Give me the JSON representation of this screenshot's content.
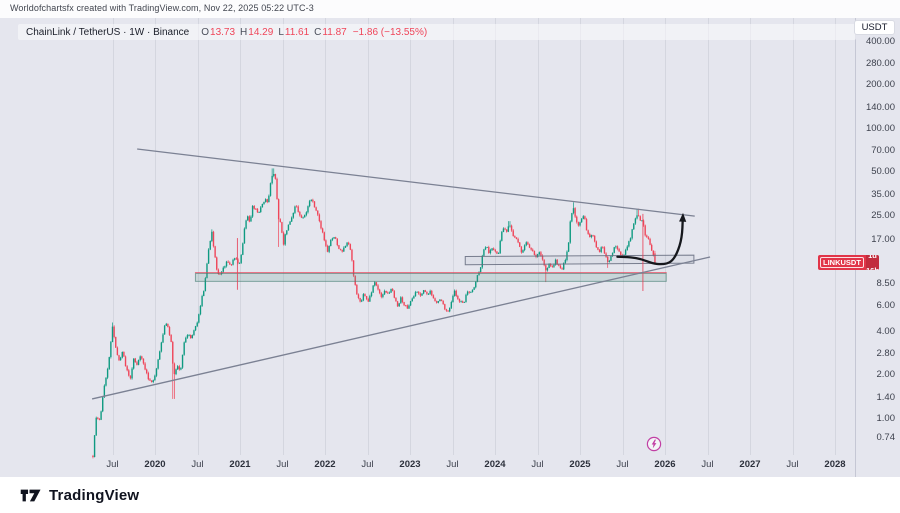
{
  "attribution": "Worldofchartsfx created with TradingView.com, Nov 22, 2025 05:22 UTC-3",
  "toolbar": {
    "currency_label": "USDT"
  },
  "legend": {
    "title": "ChainLink / TetherUS · 1W · Binance",
    "ohlc": [
      [
        "O",
        "13.73"
      ],
      [
        "H",
        "14.29"
      ],
      [
        "L",
        "11.61"
      ],
      [
        "C",
        "11.87"
      ]
    ],
    "change": "−1.86 (−13.55%)"
  },
  "price_tag": {
    "symbol": "LINKUSDT",
    "countdown": "1d 16h"
  },
  "footer": {
    "brand": "TradingView"
  },
  "chart_data": {
    "type": "candlestick",
    "title": "ChainLink / TetherUS weekly on Binance",
    "scale": "log",
    "grid": "vertical",
    "y_axis": {
      "ticks": [
        "400.00",
        "280.00",
        "200.00",
        "140.00",
        "100.00",
        "70.00",
        "50.00",
        "35.00",
        "25.00",
        "17.00",
        "8.50",
        "6.00",
        "4.00",
        "2.80",
        "2.00",
        "1.40",
        "1.00",
        "0.74"
      ]
    },
    "x_axis": {
      "ticks": [
        {
          "label": "Jul",
          "t": 2019.5
        },
        {
          "label": "2020",
          "t": 2020,
          "year": true
        },
        {
          "label": "Jul",
          "t": 2020.5
        },
        {
          "label": "2021",
          "t": 2021,
          "year": true
        },
        {
          "label": "Jul",
          "t": 2021.5
        },
        {
          "label": "2022",
          "t": 2022,
          "year": true
        },
        {
          "label": "Jul",
          "t": 2022.5
        },
        {
          "label": "2023",
          "t": 2023,
          "year": true
        },
        {
          "label": "Jul",
          "t": 2023.5
        },
        {
          "label": "2024",
          "t": 2024,
          "year": true
        },
        {
          "label": "Jul",
          "t": 2024.5
        },
        {
          "label": "2025",
          "t": 2025,
          "year": true
        },
        {
          "label": "Jul",
          "t": 2025.5
        },
        {
          "label": "2026",
          "t": 2026,
          "year": true
        },
        {
          "label": "Jul",
          "t": 2026.5
        },
        {
          "label": "2027",
          "t": 2027,
          "year": true
        },
        {
          "label": "Jul",
          "t": 2027.5
        },
        {
          "label": "2028",
          "t": 2028,
          "year": true
        }
      ]
    },
    "last_candle": {
      "open": 13.73,
      "high": 14.29,
      "low": 11.61,
      "close": 11.87
    },
    "current_price": 11.87,
    "weekly_close_anchors": [
      [
        2019.27,
        0.55
      ],
      [
        2019.31,
        1.05
      ],
      [
        2019.35,
        0.95
      ],
      [
        2019.4,
        1.6
      ],
      [
        2019.45,
        2.3
      ],
      [
        2019.5,
        4.3
      ],
      [
        2019.54,
        3.0
      ],
      [
        2019.58,
        2.45
      ],
      [
        2019.62,
        2.9
      ],
      [
        2019.66,
        2.2
      ],
      [
        2019.71,
        1.85
      ],
      [
        2019.75,
        2.6
      ],
      [
        2019.79,
        2.3
      ],
      [
        2019.83,
        2.75
      ],
      [
        2019.88,
        2.2
      ],
      [
        2019.92,
        1.9
      ],
      [
        2019.96,
        1.75
      ],
      [
        2020.0,
        2.0
      ],
      [
        2020.04,
        2.6
      ],
      [
        2020.08,
        3.4
      ],
      [
        2020.12,
        4.6
      ],
      [
        2020.16,
        4.1
      ],
      [
        2020.19,
        3.3
      ],
      [
        2020.22,
        2.0
      ],
      [
        2020.26,
        2.3
      ],
      [
        2020.3,
        2.15
      ],
      [
        2020.34,
        3.3
      ],
      [
        2020.38,
        3.8
      ],
      [
        2020.42,
        3.6
      ],
      [
        2020.46,
        4.0
      ],
      [
        2020.5,
        4.6
      ],
      [
        2020.54,
        6.3
      ],
      [
        2020.58,
        8.0
      ],
      [
        2020.62,
        13.0
      ],
      [
        2020.645,
        16.5
      ],
      [
        2020.67,
        19.2
      ],
      [
        2020.7,
        13.5
      ],
      [
        2020.73,
        10.3
      ],
      [
        2020.77,
        9.6
      ],
      [
        2020.81,
        11.0
      ],
      [
        2020.85,
        12.2
      ],
      [
        2020.89,
        11.3
      ],
      [
        2020.93,
        13.0
      ],
      [
        2020.97,
        12.0
      ],
      [
        2021.0,
        11.6
      ],
      [
        2021.03,
        15.6
      ],
      [
        2021.06,
        22.0
      ],
      [
        2021.09,
        24.5
      ],
      [
        2021.12,
        22.5
      ],
      [
        2021.15,
        29.5
      ],
      [
        2021.18,
        27.5
      ],
      [
        2021.22,
        26.5
      ],
      [
        2021.26,
        29.5
      ],
      [
        2021.3,
        32.5
      ],
      [
        2021.33,
        30.0
      ],
      [
        2021.36,
        43.0
      ],
      [
        2021.39,
        49.5
      ],
      [
        2021.42,
        43.5
      ],
      [
        2021.45,
        24.0
      ],
      [
        2021.48,
        22.5
      ],
      [
        2021.51,
        15.8
      ],
      [
        2021.54,
        19.3
      ],
      [
        2021.58,
        22.0
      ],
      [
        2021.62,
        25.5
      ],
      [
        2021.66,
        30.0
      ],
      [
        2021.69,
        26.0
      ],
      [
        2021.73,
        24.0
      ],
      [
        2021.77,
        25.5
      ],
      [
        2021.81,
        30.5
      ],
      [
        2021.85,
        32.5
      ],
      [
        2021.88,
        28.0
      ],
      [
        2021.92,
        24.5
      ],
      [
        2021.96,
        20.0
      ],
      [
        2022.0,
        16.5
      ],
      [
        2022.03,
        14.0
      ],
      [
        2022.07,
        17.0
      ],
      [
        2022.11,
        18.0
      ],
      [
        2022.15,
        15.5
      ],
      [
        2022.19,
        14.0
      ],
      [
        2022.23,
        15.0
      ],
      [
        2022.27,
        16.5
      ],
      [
        2022.31,
        13.5
      ],
      [
        2022.34,
        9.2
      ],
      [
        2022.38,
        7.0
      ],
      [
        2022.42,
        6.2
      ],
      [
        2022.46,
        7.4
      ],
      [
        2022.5,
        6.3
      ],
      [
        2022.54,
        7.2
      ],
      [
        2022.58,
        8.7
      ],
      [
        2022.62,
        7.8
      ],
      [
        2022.66,
        6.9
      ],
      [
        2022.7,
        7.6
      ],
      [
        2022.74,
        7.2
      ],
      [
        2022.78,
        7.9
      ],
      [
        2022.82,
        6.8
      ],
      [
        2022.86,
        5.9
      ],
      [
        2022.89,
        6.9
      ],
      [
        2022.93,
        6.1
      ],
      [
        2022.97,
        5.8
      ],
      [
        2023.0,
        6.2
      ],
      [
        2023.04,
        7.0
      ],
      [
        2023.08,
        7.5
      ],
      [
        2023.12,
        7.1
      ],
      [
        2023.16,
        7.6
      ],
      [
        2023.2,
        7.2
      ],
      [
        2023.24,
        7.5
      ],
      [
        2023.28,
        6.7
      ],
      [
        2023.32,
        6.3
      ],
      [
        2023.36,
        6.6
      ],
      [
        2023.4,
        5.9
      ],
      [
        2023.44,
        5.3
      ],
      [
        2023.48,
        6.2
      ],
      [
        2023.52,
        7.6
      ],
      [
        2023.55,
        6.9
      ],
      [
        2023.59,
        6.4
      ],
      [
        2023.63,
        6.1
      ],
      [
        2023.67,
        7.4
      ],
      [
        2023.71,
        7.3
      ],
      [
        2023.75,
        8.0
      ],
      [
        2023.79,
        9.6
      ],
      [
        2023.83,
        11.0
      ],
      [
        2023.86,
        14.3
      ],
      [
        2023.9,
        15.8
      ],
      [
        2023.93,
        13.9
      ],
      [
        2023.97,
        15.3
      ],
      [
        2024.0,
        14.2
      ],
      [
        2024.04,
        13.6
      ],
      [
        2024.07,
        18.6
      ],
      [
        2024.1,
        20.3
      ],
      [
        2024.14,
        19.0
      ],
      [
        2024.17,
        22.3
      ],
      [
        2024.21,
        18.5
      ],
      [
        2024.25,
        17.5
      ],
      [
        2024.28,
        15.5
      ],
      [
        2024.32,
        13.8
      ],
      [
        2024.36,
        16.4
      ],
      [
        2024.4,
        15.2
      ],
      [
        2024.44,
        14.2
      ],
      [
        2024.48,
        13.0
      ],
      [
        2024.52,
        14.3
      ],
      [
        2024.56,
        12.2
      ],
      [
        2024.6,
        10.3
      ],
      [
        2024.64,
        11.5
      ],
      [
        2024.67,
        10.7
      ],
      [
        2024.71,
        12.4
      ],
      [
        2024.75,
        11.2
      ],
      [
        2024.79,
        10.8
      ],
      [
        2024.83,
        12.7
      ],
      [
        2024.86,
        15.0
      ],
      [
        2024.89,
        24.5
      ],
      [
        2024.92,
        28.8
      ],
      [
        2024.95,
        23.0
      ],
      [
        2024.98,
        21.0
      ],
      [
        2025.02,
        23.5
      ],
      [
        2025.05,
        25.0
      ],
      [
        2025.08,
        19.5
      ],
      [
        2025.12,
        17.5
      ],
      [
        2025.15,
        18.5
      ],
      [
        2025.19,
        15.0
      ],
      [
        2025.23,
        14.2
      ],
      [
        2025.26,
        15.5
      ],
      [
        2025.3,
        13.3
      ],
      [
        2025.33,
        11.6
      ],
      [
        2025.37,
        13.2
      ],
      [
        2025.41,
        15.8
      ],
      [
        2025.44,
        14.6
      ],
      [
        2025.48,
        13.2
      ],
      [
        2025.52,
        13.6
      ],
      [
        2025.56,
        15.3
      ],
      [
        2025.6,
        18.2
      ],
      [
        2025.63,
        21.8
      ],
      [
        2025.655,
        24.5
      ],
      [
        2025.68,
        26.2
      ],
      [
        2025.71,
        23.2
      ],
      [
        2025.74,
        22.4
      ],
      [
        2025.765,
        18.2
      ],
      [
        2025.8,
        17.3
      ],
      [
        2025.83,
        15.6
      ],
      [
        2025.855,
        13.73
      ],
      [
        2025.885,
        11.87
      ]
    ],
    "wick_events": [
      {
        "t": 2019.5,
        "high": 4.58
      },
      {
        "t": 2020.22,
        "low": 1.36
      },
      {
        "t": 2020.67,
        "high": 20.1
      },
      {
        "t": 2021.39,
        "high": 52.9
      },
      {
        "t": 2021.45,
        "low": 15.2
      },
      {
        "t": 2024.17,
        "high": 22.9
      },
      {
        "t": 2024.6,
        "low": 8.7
      },
      {
        "t": 2024.92,
        "high": 30.9
      },
      {
        "t": 2025.33,
        "low": 10.9
      },
      {
        "t": 2025.68,
        "high": 27.9
      }
    ],
    "drawings": {
      "descending_trendline": {
        "from": [
          2019.79,
          72.0
        ],
        "to": [
          2026.35,
          24.8
        ]
      },
      "ascending_trendline": {
        "from": [
          2019.26,
          1.36
        ],
        "to": [
          2026.53,
          12.95
        ]
      },
      "resistance_channel": {
        "from_t": 2023.65,
        "to_t": 2026.34,
        "top_price_start": 13.05,
        "top_price_end": 13.35,
        "bottom_price_start": 11.45,
        "bottom_price_end": 11.75
      },
      "support_zone": {
        "from_t": 2020.47,
        "to_t": 2026.02,
        "top_price": 10.05,
        "bottom_price": 8.73
      },
      "support_line": {
        "from_t": 2020.47,
        "to_t": 2026.02,
        "price": 10.1
      },
      "vertical_lines": [
        {
          "t": 2020.97,
          "from_price": 17.5,
          "to_price": 7.7
        },
        {
          "t": 2025.74,
          "from_price": 25.7,
          "to_price": 7.55
        }
      ],
      "projection_arrow": [
        [
          2025.44,
          13.0
        ],
        [
          2025.6,
          12.9
        ],
        [
          2025.72,
          12.55
        ],
        [
          2025.85,
          11.7
        ],
        [
          2025.97,
          11.5
        ],
        [
          2026.07,
          11.9
        ],
        [
          2026.14,
          13.6
        ],
        [
          2026.2,
          17.5
        ],
        [
          2026.21,
          24.5
        ]
      ],
      "event_marker": {
        "t": 2025.87
      }
    },
    "colors": {
      "up": "#0e9a81",
      "down": "#ef4559",
      "trendline": "#7b8193",
      "zone_fill": "rgba(86,148,134,0.20)",
      "zone_border": "rgba(64,120,108,0.55)",
      "red_line": "#e8445a",
      "arrow": "#16181d",
      "tag": "#e13448",
      "event": "#c13fa4",
      "grid": "rgba(123,130,152,0.16)",
      "background": "#e5e6ee"
    }
  }
}
